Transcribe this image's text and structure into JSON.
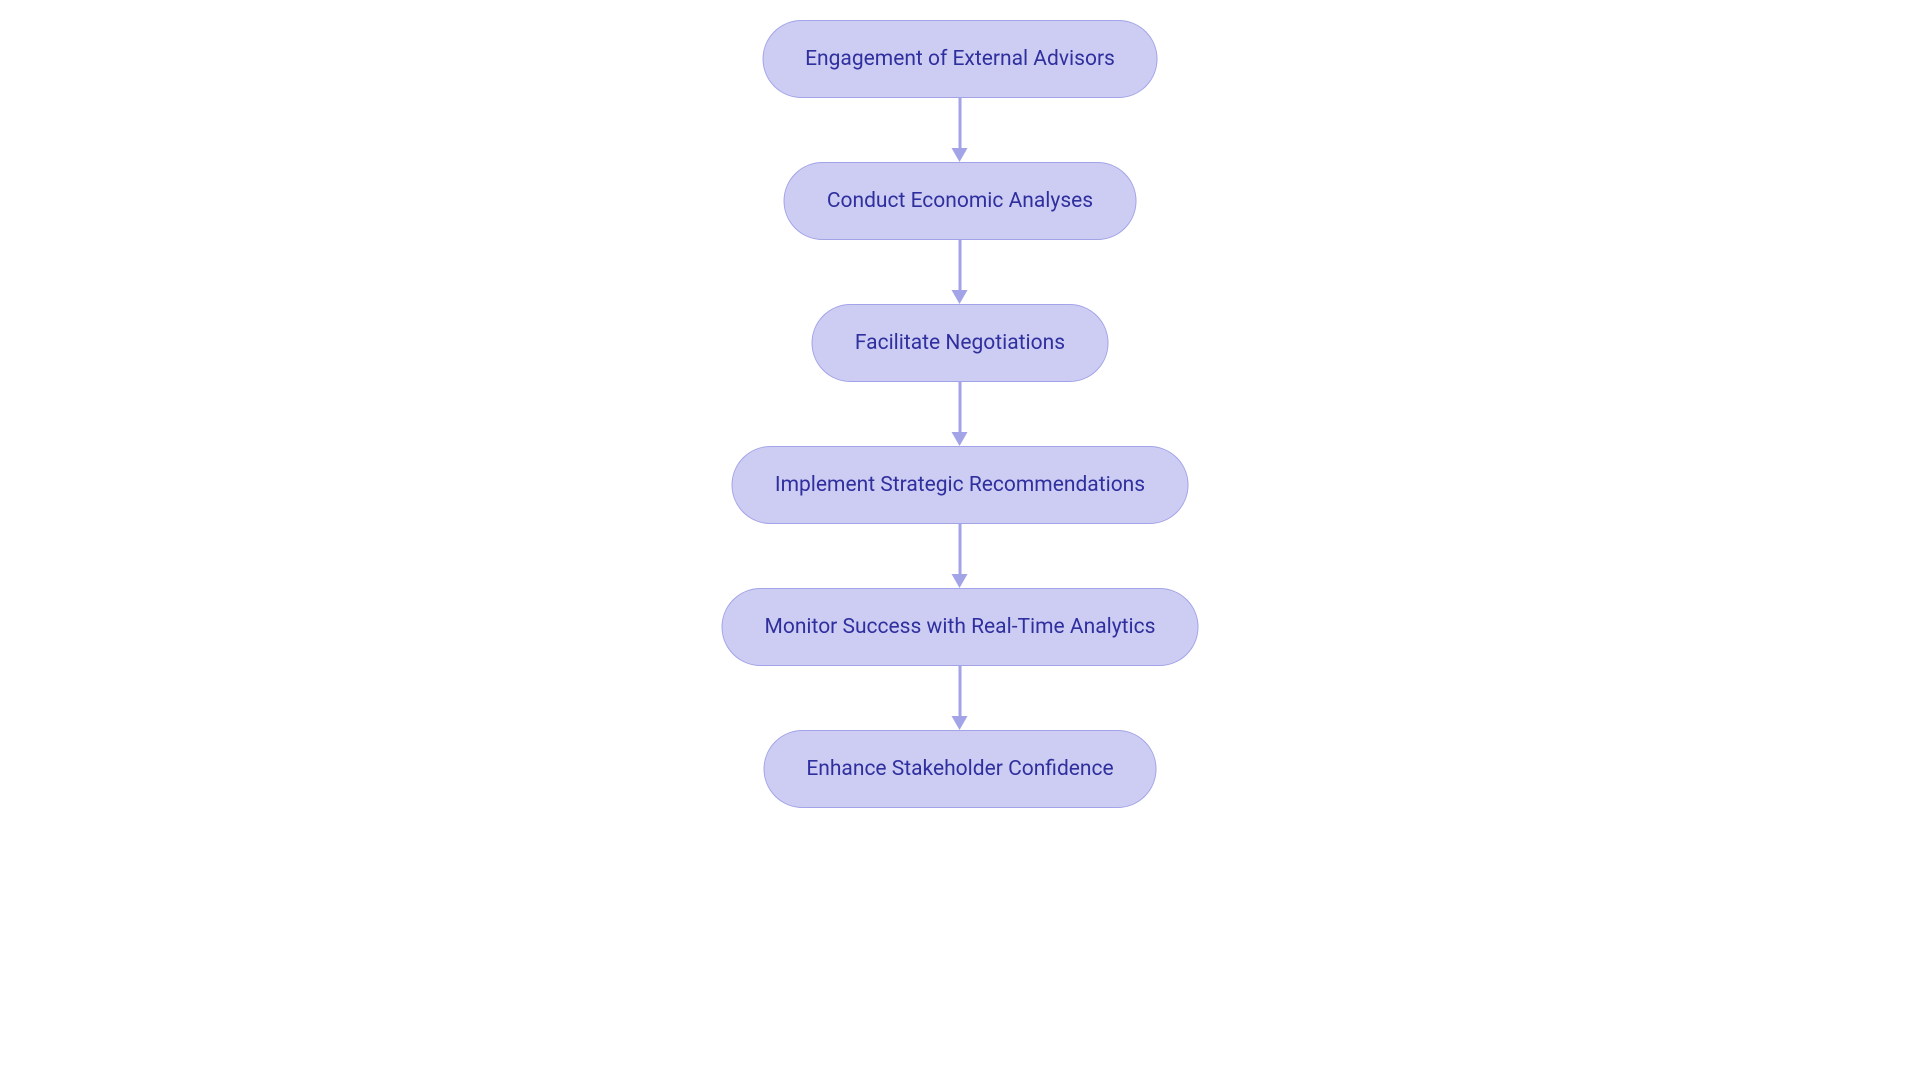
{
  "flowchart": {
    "type": "flowchart",
    "orientation": "vertical",
    "background_color": "#ffffff",
    "node_fill_color": "#cdcdf4",
    "node_border_color": "#a3a3e8",
    "node_text_color": "#2f2f9e",
    "node_font_size": 21,
    "node_border_radius": 999,
    "node_padding_vertical": 26,
    "node_padding_horizontal": 42,
    "arrow_color": "#a3a3e8",
    "arrow_line_width": 2.5,
    "arrow_head_width": 16,
    "arrow_head_height": 14,
    "arrow_gap_height": 64,
    "nodes": [
      {
        "id": "n1",
        "label": "Engagement of External Advisors"
      },
      {
        "id": "n2",
        "label": "Conduct Economic Analyses"
      },
      {
        "id": "n3",
        "label": "Facilitate Negotiations"
      },
      {
        "id": "n4",
        "label": "Implement Strategic Recommendations"
      },
      {
        "id": "n5",
        "label": "Monitor Success with Real-Time Analytics"
      },
      {
        "id": "n6",
        "label": "Enhance Stakeholder Confidence"
      }
    ],
    "edges": [
      {
        "from": "n1",
        "to": "n2"
      },
      {
        "from": "n2",
        "to": "n3"
      },
      {
        "from": "n3",
        "to": "n4"
      },
      {
        "from": "n4",
        "to": "n5"
      },
      {
        "from": "n5",
        "to": "n6"
      }
    ]
  }
}
